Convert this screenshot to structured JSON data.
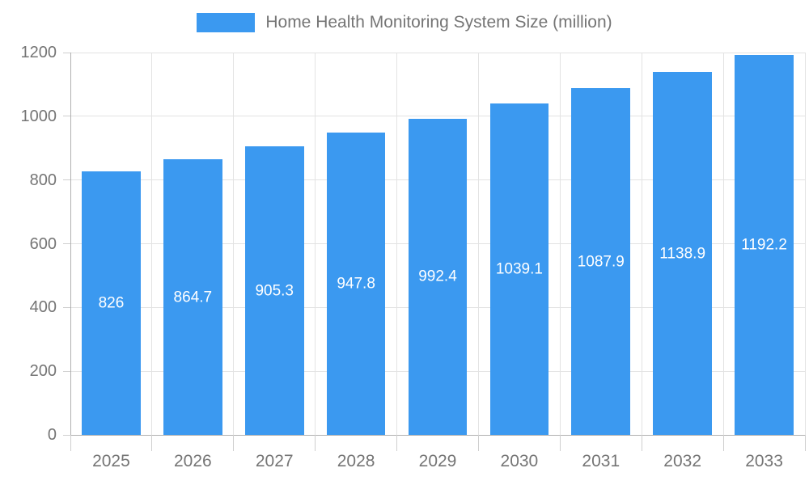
{
  "chart_data": {
    "type": "bar",
    "title": "Home Health Monitoring System Size (million)",
    "legend": {
      "label": "Home Health Monitoring System Size (million)",
      "position": "top-center"
    },
    "categories": [
      "2025",
      "2026",
      "2027",
      "2028",
      "2029",
      "2030",
      "2031",
      "2032",
      "2033"
    ],
    "values": [
      826,
      864.7,
      905.3,
      947.8,
      992.4,
      1039.1,
      1087.9,
      1138.9,
      1192.2
    ],
    "value_labels": [
      "826",
      "864.7",
      "905.3",
      "947.8",
      "992.4",
      "1039.1",
      "1087.9",
      "1138.9",
      "1192.2"
    ],
    "xlabel": "",
    "ylabel": "",
    "ylim": [
      0,
      1200
    ],
    "yticks": [
      0,
      200,
      400,
      600,
      800,
      1000,
      1200
    ],
    "grid": true,
    "colors": {
      "bar": "#3B99F0",
      "axis_text": "#757575",
      "grid_line": "#e3e3e3",
      "axis_line": "#b0b0b0",
      "value_label": "#ffffff",
      "background": "#ffffff"
    }
  }
}
